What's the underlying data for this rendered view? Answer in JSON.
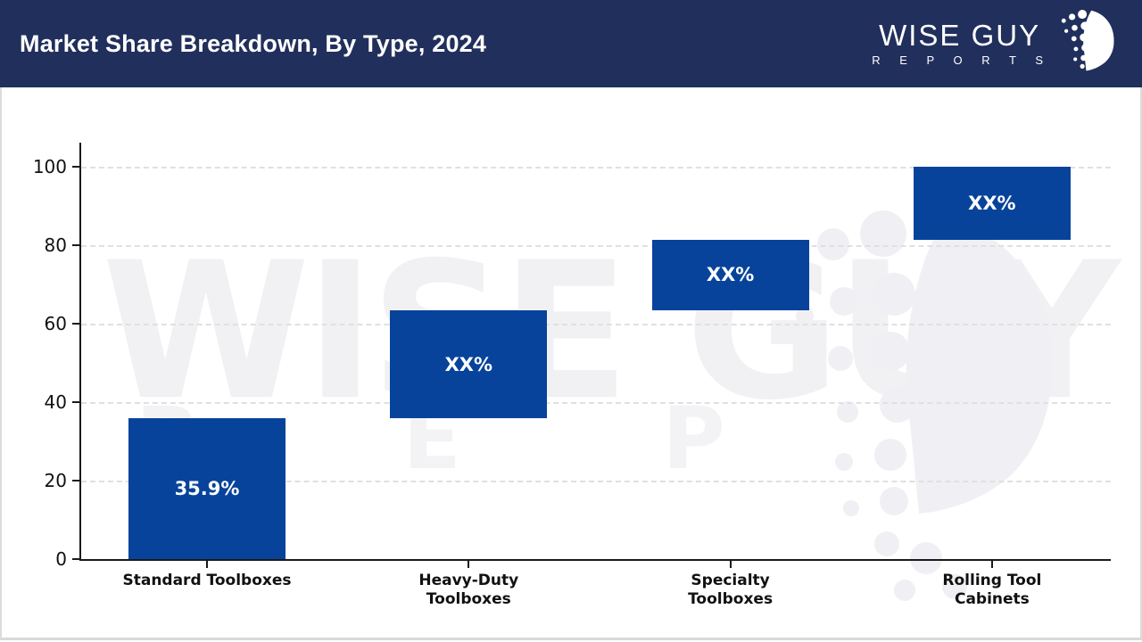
{
  "header": {
    "title": "Market Share Breakdown, By Type, 2024",
    "bg_color": "#212f5c",
    "logo": {
      "line1": "WISE GUY",
      "line2": "R E P O R T S"
    }
  },
  "watermark": {
    "line1": "WISE GUY",
    "line2": "R E P O R T S"
  },
  "chart_data": {
    "type": "bar",
    "subtype": "stacked-waterfall",
    "title": "Market Share Breakdown, By Type, 2024",
    "xlabel": "",
    "ylabel": "",
    "ylim": [
      0,
      105
    ],
    "yticks": [
      0,
      20,
      40,
      60,
      80,
      100
    ],
    "grid": "horizontal-dashed",
    "legend": "none",
    "bar_color": "#08439b",
    "categories": [
      "Standard Toolboxes",
      "Heavy-Duty Toolboxes",
      "Specialty Toolboxes",
      "Rolling Tool Cabinets"
    ],
    "category_label_lines": [
      [
        "Standard Toolboxes"
      ],
      [
        "Heavy-Duty",
        "Toolboxes"
      ],
      [
        "Specialty",
        "Toolboxes"
      ],
      [
        "Rolling Tool",
        "Cabinets"
      ]
    ],
    "segments": [
      {
        "category": "Standard Toolboxes",
        "start": 0,
        "end": 35.9,
        "label": "35.9%"
      },
      {
        "category": "Heavy-Duty Toolboxes",
        "start": 35.9,
        "end": 63.4,
        "label": "XX%"
      },
      {
        "category": "Specialty Toolboxes",
        "start": 63.5,
        "end": 81.3,
        "label": "XX%"
      },
      {
        "category": "Rolling Tool Cabinets",
        "start": 81.3,
        "end": 100,
        "label": "XX%"
      }
    ]
  }
}
